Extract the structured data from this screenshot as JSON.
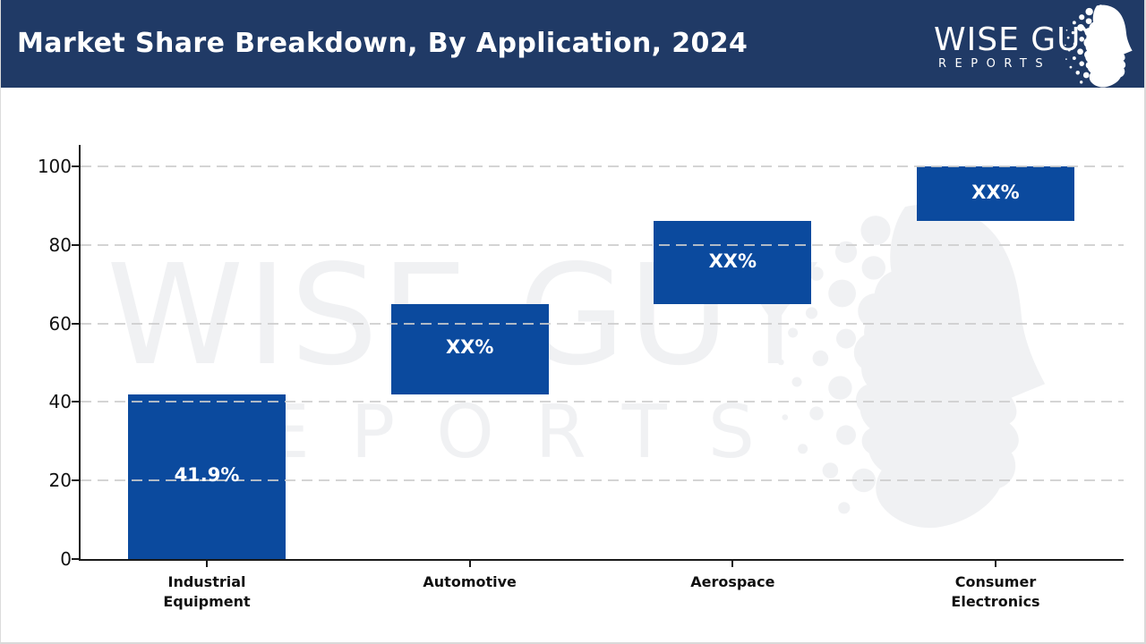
{
  "header": {
    "title": "Market Share Breakdown, By Application, 2024",
    "logo": {
      "line1": "WISE GUY",
      "line2": "REPORTS"
    }
  },
  "watermark": {
    "line1": "WISE GUY",
    "line2": "REPORTS"
  },
  "chart_data": {
    "type": "bar",
    "subtype": "waterfall",
    "title": "Market Share Breakdown, By Application, 2024",
    "categories": [
      [
        "Industrial",
        "Equipment"
      ],
      [
        "Automotive"
      ],
      [
        "Aerospace"
      ],
      [
        "Consumer",
        "Electronics"
      ]
    ],
    "segments": [
      {
        "category": "Industrial Equipment",
        "start": 0,
        "end": 41.9,
        "label": "41.9%"
      },
      {
        "category": "Automotive",
        "start": 41.9,
        "end": 65,
        "label": "XX%"
      },
      {
        "category": "Aerospace",
        "start": 65,
        "end": 86,
        "label": "XX%"
      },
      {
        "category": "Consumer Electronics",
        "start": 86,
        "end": 100,
        "label": "XX%"
      }
    ],
    "yticks": [
      0,
      20,
      40,
      60,
      80,
      100
    ],
    "ylim": [
      0,
      100
    ],
    "xlabel": "",
    "ylabel": "",
    "grid": "horizontal-dashed",
    "legend": "none",
    "bar_color": "#0b4a9e",
    "bar_label_color": "#ffffff",
    "header_bg_color": "#203a66",
    "watermark_color": "#f0f1f3",
    "grid_color": "#d8d8d8"
  }
}
